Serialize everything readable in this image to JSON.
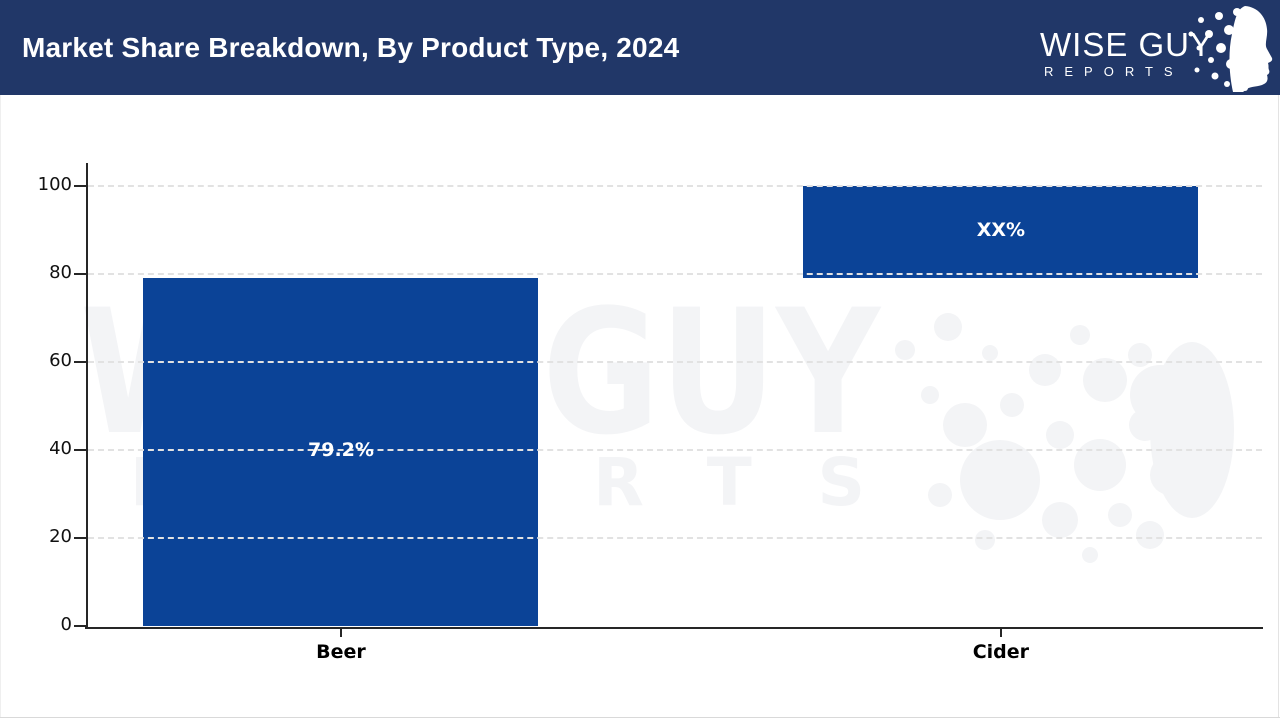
{
  "header": {
    "title": "Market Share Breakdown, By Product Type, 2024",
    "logo": {
      "line1": "WISE GUY",
      "line2": "REPORTS"
    }
  },
  "watermark": {
    "line1": "WISE GUY",
    "line2": "REPORTS"
  },
  "chart_data": {
    "type": "bar",
    "title": "Market Share Breakdown, By Product Type, 2024",
    "categories": [
      "Beer",
      "Cider"
    ],
    "bars": [
      {
        "category": "Beer",
        "value": 79.2,
        "label": "79.2%",
        "start": 0,
        "end": 79.2
      },
      {
        "category": "Cider",
        "value": null,
        "label": "XX%",
        "start": 79.2,
        "end": 100
      }
    ],
    "xlabel": "",
    "ylabel": "",
    "ylim": [
      0,
      105
    ],
    "yticks": [
      0,
      20,
      40,
      60,
      80,
      100
    ],
    "grid": "horizontal-dashed",
    "legend": "none",
    "colors": {
      "bar": "#0b4397",
      "bar_label": "#ffffff",
      "header_bg": "#213768",
      "grid_line": "#e2e2e2",
      "axis": "#262626",
      "watermark": "#f3f4f6"
    }
  }
}
